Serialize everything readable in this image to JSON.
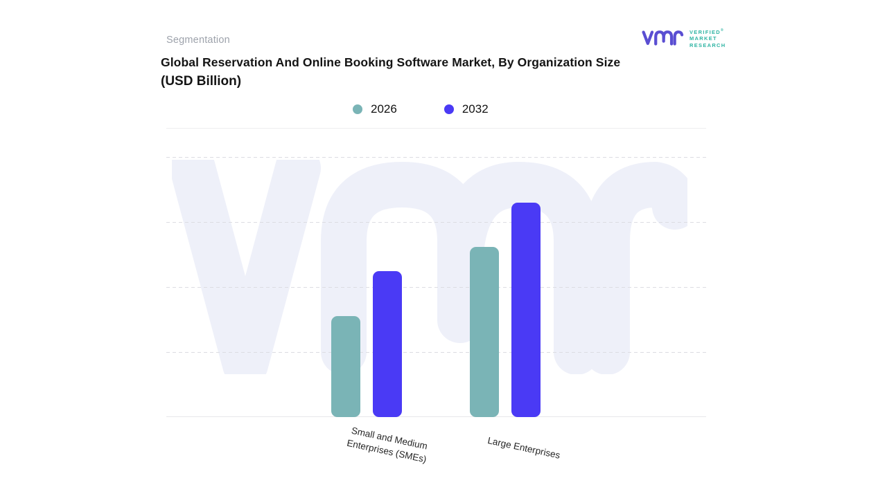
{
  "header": {
    "eyebrow": "Segmentation",
    "title_line1": "Global Reservation And Online Booking Software Market, By Organization Size",
    "title_line2": "(USD Billion)"
  },
  "logo": {
    "glyph": "vmr-monogram",
    "glyph_color": "#5a4ed2",
    "text_color": "#2eb4a3",
    "lines": [
      "VERIFIED",
      "MARKET",
      "RESEARCH"
    ],
    "registered_mark": "®"
  },
  "legend": {
    "items": [
      {
        "label": "2026",
        "color": "#7ab4b6"
      },
      {
        "label": "2032",
        "color": "#4a3af5"
      }
    ]
  },
  "chart_data": {
    "type": "bar",
    "title": "Global Reservation And Online Booking Software Market, By Organization Size (USD Billion)",
    "ylabel": "USD Billion",
    "y_axis_labeled": false,
    "units_note": "No numeric axis labels shown; values are relative bar heights as % of plot height",
    "categories": [
      "Small and Medium Enterprises (SMEs)",
      "Large Enterprises"
    ],
    "category_label_lines": [
      [
        "Small and Medium",
        "Enterprises (SMEs)"
      ],
      [
        "Large Enterprises"
      ]
    ],
    "series": [
      {
        "name": "2026",
        "color": "#7ab4b6",
        "values_pct_of_plot_height": [
          38.8,
          65.4
        ]
      },
      {
        "name": "2032",
        "color": "#4a3af5",
        "values_pct_of_plot_height": [
          56.1,
          82.4
        ]
      }
    ],
    "gridlines": {
      "style": "dashed",
      "horizontal_intervals": 4
    },
    "legend_position": "top-center",
    "watermark_color": "#eef0f9"
  }
}
